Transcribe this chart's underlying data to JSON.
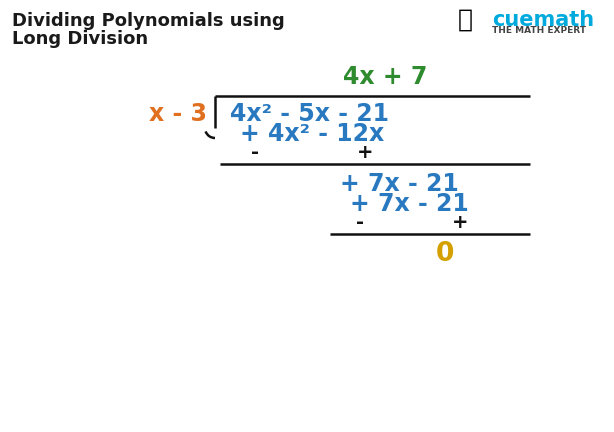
{
  "title_line1": "Dividing Polynomials using",
  "title_line2": "Long Division",
  "title_color": "#1a1a1a",
  "bg_color": "#ffffff",
  "green_color": "#2e8b2e",
  "blue_color": "#2979c0",
  "orange_color": "#e07020",
  "dark_color": "#111111",
  "gold_color": "#d4a000",
  "cyan_color": "#00aadd",
  "quotient": "4x + 7",
  "divisor": "x - 3",
  "dividend": "4x² - 5x - 21",
  "row1": "+ 4x² - 12x",
  "sign1_minus": "-",
  "sign1_plus": "+",
  "row2": "+ 7x - 21",
  "row3": "+ 7x - 21",
  "sign2_minus": "-",
  "sign2_plus": "+",
  "remainder": "0",
  "cuemath_text": "cuemath",
  "cuemath_sub": "THE MATH EXPERT"
}
